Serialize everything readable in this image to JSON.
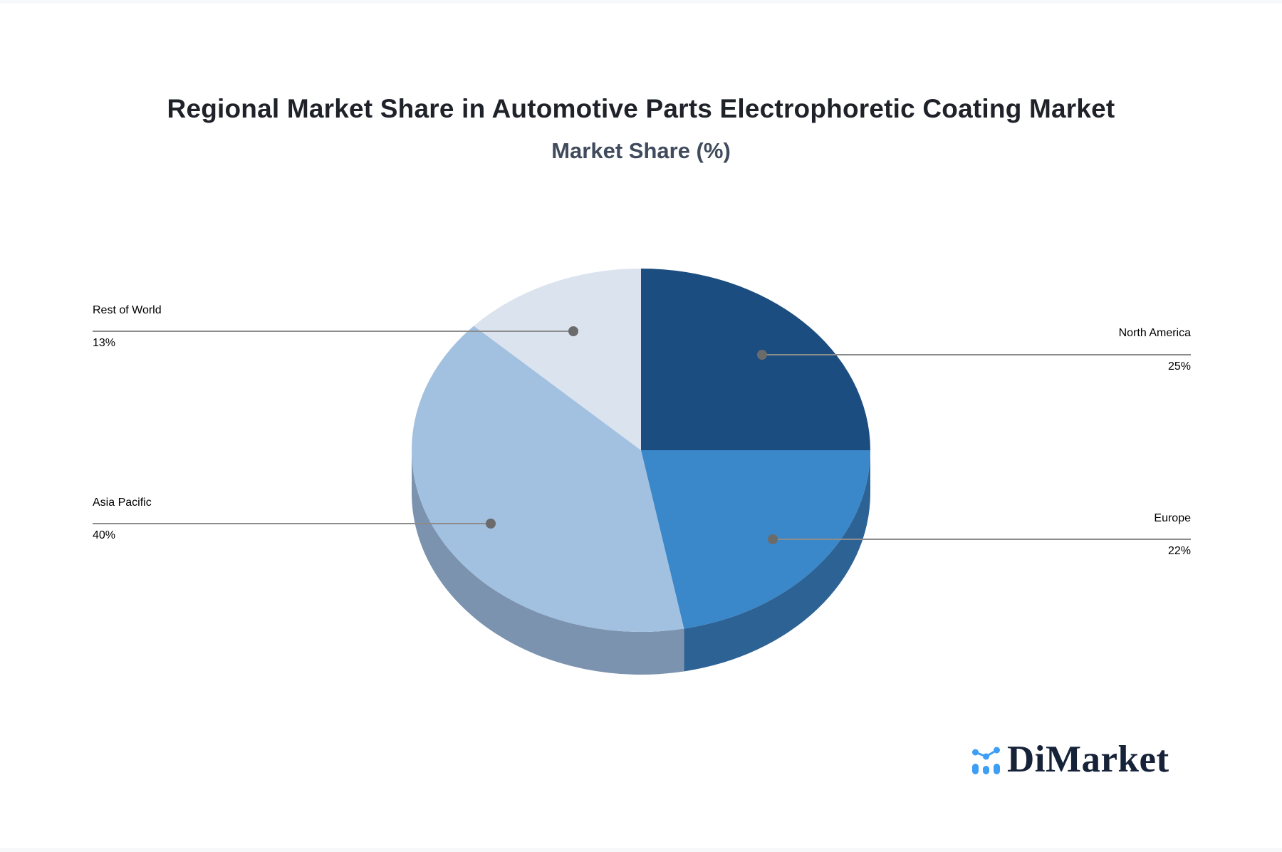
{
  "header": {
    "title": "Regional Market Share in Automotive Parts Electrophoretic Coating Market",
    "subtitle": "Market Share (%)"
  },
  "chart_data": {
    "type": "pie",
    "style": "3d",
    "title": "Regional Market Share in Automotive Parts Electrophoretic Coating Market",
    "subtitle": "Market Share (%)",
    "unit": "%",
    "start_angle_deg": 0,
    "clockwise": true,
    "legend_position": "none",
    "labels": "external-callouts",
    "slices": [
      {
        "label": "North America",
        "value": 25,
        "display": "25%",
        "color": "#1b4d80",
        "side_color": "#16405f",
        "callout_side": "right"
      },
      {
        "label": "Europe",
        "value": 22,
        "display": "22%",
        "color": "#3a87c9",
        "side_color": "#2d6295",
        "callout_side": "right"
      },
      {
        "label": "Asia Pacific",
        "value": 40,
        "display": "40%",
        "color": "#a2c0e0",
        "side_color": "#7b93ae",
        "callout_side": "left"
      },
      {
        "label": "Rest of World",
        "value": 13,
        "display": "13%",
        "color": "#dbe3ef",
        "side_color": "#c5cfdd",
        "callout_side": "left"
      }
    ]
  },
  "colors": {
    "background": "#ffffff",
    "leader_line": "#8c8c8c",
    "leader_dot": "#6b6b6b",
    "label_text": "#3c3c3c",
    "percent_text": "#8f9499",
    "title_text": "#1f2329",
    "subtitle_text": "#414b5e",
    "logo_blue": "#3d9ef6",
    "logo_text": "#152238"
  },
  "branding": {
    "name": "DiMarket",
    "icon": "bar-line-chart-icon"
  }
}
